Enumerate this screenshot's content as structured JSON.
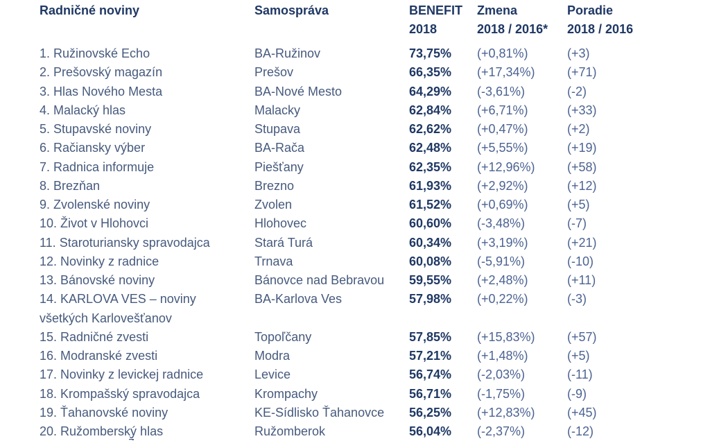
{
  "colors": {
    "heading_text": "#1f3864",
    "body_text": "#465a7d",
    "value_text": "#4c6392",
    "background": "#ffffff"
  },
  "table": {
    "headers": [
      "Radničné noviny",
      "Samospráva",
      "BENEFIT\n2018",
      "Zmena\n2018 / 2016*",
      "Poradie\n2018 / 2016"
    ],
    "rows": [
      {
        "name": "1. Ružinovské Echo",
        "municipality": "BA-Ružinov",
        "benefit": "73,75%",
        "change": "(+0,81%)",
        "rank_change": "(+3)"
      },
      {
        "name": "2. Prešovský magazín",
        "municipality": "Prešov",
        "benefit": "66,35%",
        "change": "(+17,34%)",
        "rank_change": "(+71)"
      },
      {
        "name": "3. Hlas Nového Mesta",
        "municipality": "BA-Nové Mesto",
        "benefit": "64,29%",
        "change": "(-3,61%)",
        "rank_change": "(-2)"
      },
      {
        "name": "4. Malacký hlas",
        "municipality": "Malacky",
        "benefit": "62,84%",
        "change": "(+6,71%)",
        "rank_change": "(+33)"
      },
      {
        "name": "5. Stupavské noviny",
        "municipality": "Stupava",
        "benefit": "62,62%",
        "change": "(+0,47%)",
        "rank_change": "(+2)"
      },
      {
        "name": "6. Račiansky výber",
        "municipality": "BA-Rača",
        "benefit": "62,48%",
        "change": "(+5,55%)",
        "rank_change": "(+19)"
      },
      {
        "name": "7. Radnica informuje",
        "municipality": "Piešťany",
        "benefit": "62,35%",
        "change": "(+12,96%)",
        "rank_change": "(+58)"
      },
      {
        "name": "8. Brezňan",
        "municipality": "Brezno",
        "benefit": "61,93%",
        "change": "(+2,92%)",
        "rank_change": "(+12)"
      },
      {
        "name": "9. Zvolenské noviny",
        "municipality": "Zvolen",
        "benefit": "61,52%",
        "change": "(+0,69%)",
        "rank_change": "(+5)"
      },
      {
        "name": "10. Život v Hlohovci",
        "municipality": "Hlohovec",
        "benefit": "60,60%",
        "change": "(-3,48%)",
        "rank_change": "(-7)"
      },
      {
        "name": "11. Staroturiansky spravodajca",
        "municipality": "Stará Turá",
        "benefit": "60,34%",
        "change": "(+3,19%)",
        "rank_change": "(+21)"
      },
      {
        "name": "12. Novinky z radnice",
        "municipality": "Trnava",
        "benefit": "60,08%",
        "change": "(-5,91%)",
        "rank_change": "(-10)"
      },
      {
        "name": "13. Bánovské noviny",
        "municipality": "Bánovce nad Bebravou",
        "benefit": "59,55%",
        "change": "(+2,48%)",
        "rank_change": "(+11)"
      },
      {
        "name": "14. KARLOVA VES – noviny\nvšetkých Karlovešťanov",
        "municipality": "BA-Karlova Ves",
        "benefit": "57,98%",
        "change": "(+0,22%)",
        "rank_change": "(-3)"
      },
      {
        "name": "15. Radničné zvesti",
        "municipality": "Topoľčany",
        "benefit": "57,85%",
        "change": "(+15,83%)",
        "rank_change": "(+57)"
      },
      {
        "name": "16. Modranské zvesti",
        "municipality": "Modra",
        "benefit": "57,21%",
        "change": "(+1,48%)",
        "rank_change": "(+5)"
      },
      {
        "name": "17. Novinky z levickej radnice",
        "municipality": "Levice",
        "benefit": "56,74%",
        "change": "(-2,03%)",
        "rank_change": "(-11)"
      },
      {
        "name": "18. Krompašský spravodajca",
        "municipality": "Krompachy",
        "benefit": "56,71%",
        "change": "(-1,75%)",
        "rank_change": "(-9)"
      },
      {
        "name": "19. Ťahanovské noviny",
        "municipality": "KE-Sídlisko Ťahanovce",
        "benefit": "56,25%",
        "change": "(+12,83%)",
        "rank_change": "(+45)"
      },
      {
        "name": "20. Ružomberský hlas",
        "municipality": "Ružomberok",
        "benefit": "56,04%",
        "change": "(-2,37%)",
        "rank_change": "(-12)"
      }
    ]
  },
  "cutoff_fragment": "ž"
}
